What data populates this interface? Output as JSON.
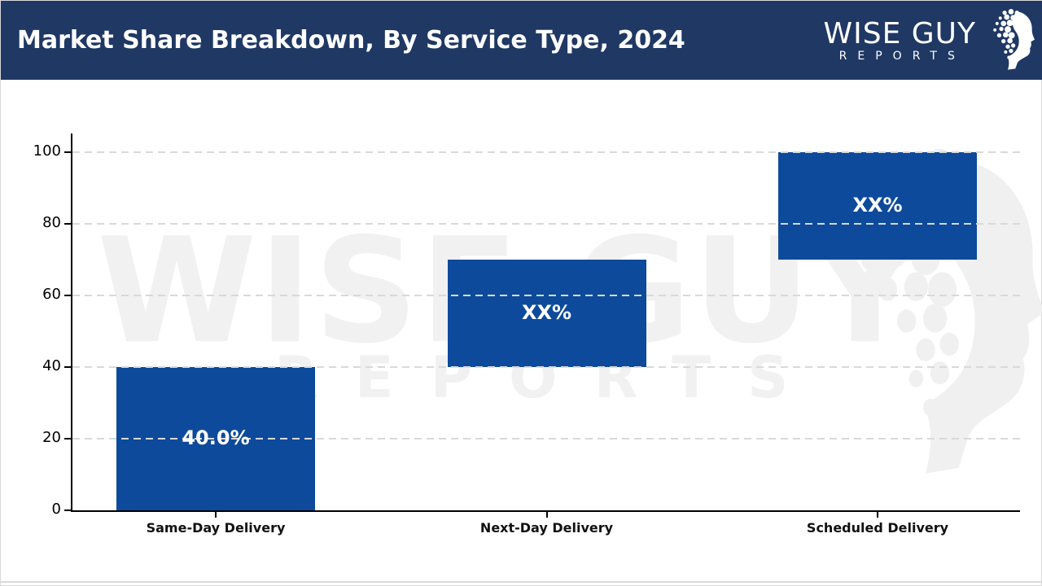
{
  "header": {
    "title": "Market Share Breakdown, By Service Type, 2024",
    "logo": {
      "line1": "WISE GUY",
      "line2": "REPORTS"
    }
  },
  "watermark": {
    "line1": "WISE GUY",
    "line2": "REPORTS"
  },
  "colors": {
    "header_bg": "#1f3864",
    "bar": "#0d4a9c",
    "grid": "#d9d9d9",
    "axis": "#000000",
    "watermark": "#f1f1f1",
    "value_label": "#ffffff",
    "page_border": "#d9d9d9"
  },
  "chart_data": {
    "type": "bar",
    "subtype": "floating-segment (waterfall-style market share)",
    "title": "Market Share Breakdown, By Service Type, 2024",
    "categories": [
      "Same-Day Delivery",
      "Next-Day Delivery",
      "Scheduled Delivery"
    ],
    "series": [
      {
        "name": "Market Share",
        "segments": [
          {
            "category": "Same-Day Delivery",
            "from": 0,
            "to": 40,
            "label": "40.0%"
          },
          {
            "category": "Next-Day Delivery",
            "from": 40,
            "to": 70,
            "label": "XX%"
          },
          {
            "category": "Scheduled Delivery",
            "from": 70,
            "to": 100,
            "label": "XX%"
          }
        ]
      }
    ],
    "xlabel": "",
    "ylabel": "",
    "ylim": [
      0,
      100
    ],
    "yticks": [
      0,
      20,
      40,
      60,
      80,
      100
    ],
    "grid": "horizontal dashed, drawn above bars",
    "legend": "none",
    "bar_color": "#0d4a9c"
  }
}
